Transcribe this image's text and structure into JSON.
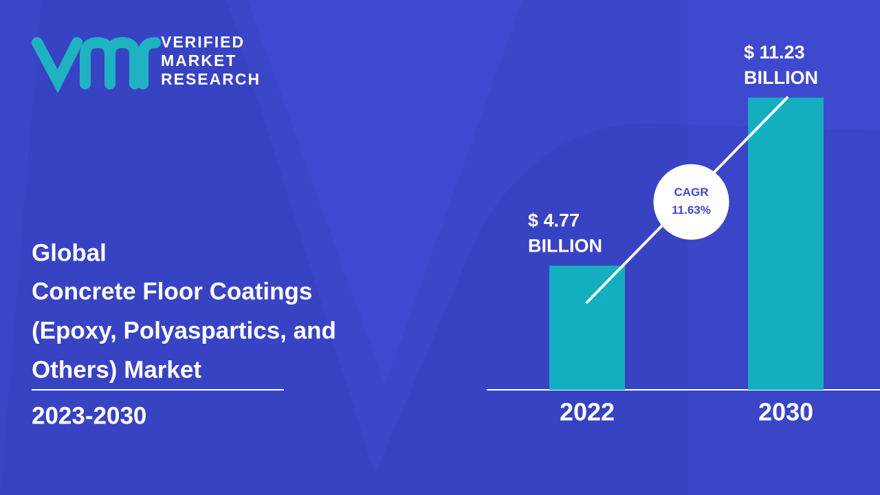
{
  "logo": {
    "lines": [
      "VERIFIED",
      "MARKET",
      "RESEARCH"
    ]
  },
  "heading": {
    "lines": [
      "Global",
      "Concrete Floor Coatings",
      "(Epoxy, Polyaspartics, and",
      "Others) Market"
    ],
    "period": "2023-2030"
  },
  "chart_data": {
    "type": "bar",
    "categories": [
      "2022",
      "2030"
    ],
    "values": [
      4.77,
      11.23
    ],
    "value_labels": [
      [
        "$ 4.77",
        "BILLION"
      ],
      [
        "$ 11.23",
        "BILLION"
      ]
    ],
    "color": "#13aebf",
    "annotation": {
      "lines": [
        "CAGR",
        "11.63%"
      ]
    }
  }
}
